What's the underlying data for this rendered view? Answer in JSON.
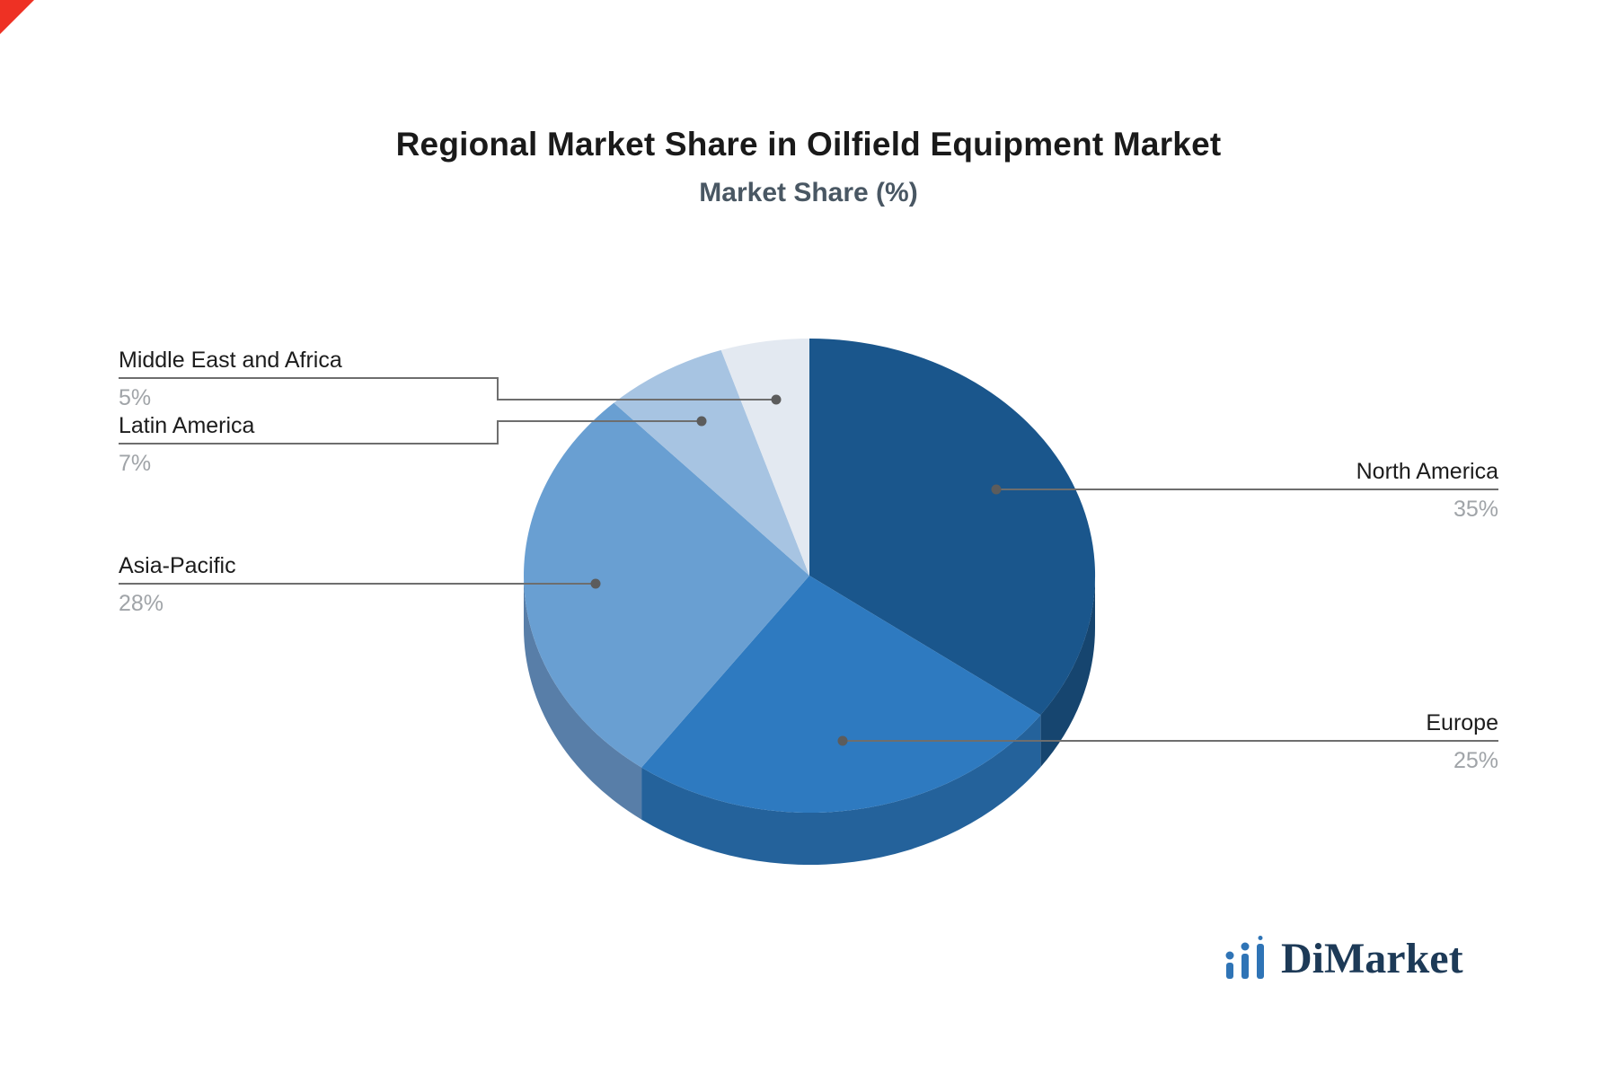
{
  "title": "Regional Market Share in Oilfield Equipment Market",
  "subtitle": "Market Share (%)",
  "logo": {
    "text": "DiMarket",
    "icon_color": "#2f74b6",
    "text_color": "#1d3a57"
  },
  "corner_color": "#ee3124",
  "leader_line_color": "#6e6e6e",
  "label_text_color": "#1c1c1c",
  "percent_text_color": "#a0a4a8",
  "chart_data": {
    "type": "pie",
    "style": "3d",
    "title": "Regional Market Share in Oilfield Equipment Market",
    "subtitle": "Market Share (%)",
    "unit": "%",
    "start": "12-oclock",
    "direction": "clockwise",
    "legend": "none",
    "slices": [
      {
        "label": "North America",
        "value": 35,
        "pct": "35%",
        "color": "#1a568c",
        "side_color": "#16456f"
      },
      {
        "label": "Europe",
        "value": 25,
        "pct": "25%",
        "color": "#2e7ac0",
        "side_color": "#24629b"
      },
      {
        "label": "Asia-Pacific",
        "value": 28,
        "pct": "28%",
        "color": "#699fd2",
        "side_color": "#587ea8"
      },
      {
        "label": "Latin America",
        "value": 7,
        "pct": "7%",
        "color": "#a7c4e2",
        "side_color": "#8ba7c4"
      },
      {
        "label": "Middle East and Africa",
        "value": 5,
        "pct": "5%",
        "color": "#e3e9f1",
        "side_color": "#bcc7d6"
      }
    ]
  }
}
